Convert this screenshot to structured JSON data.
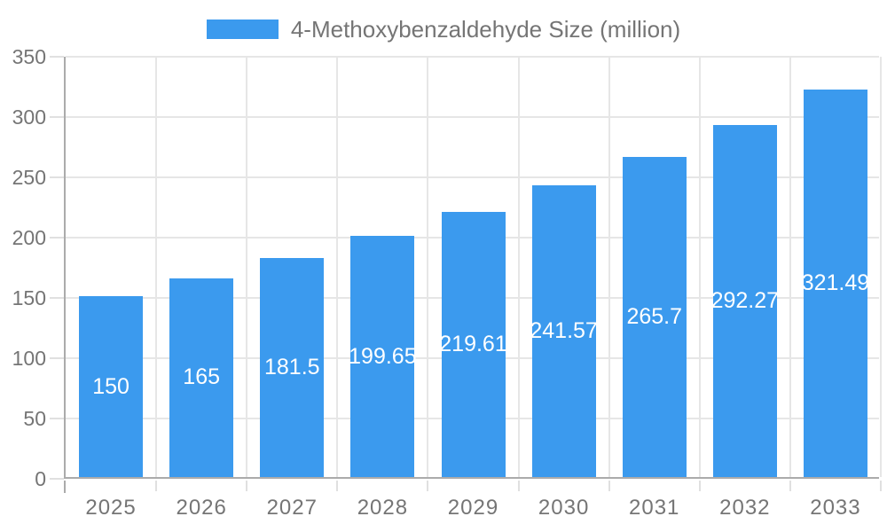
{
  "legend": {
    "position": "top",
    "entries": [
      {
        "label": "4-Methoxybenzaldehyde Size (million)",
        "swatch_color": "#3b9aee"
      }
    ]
  },
  "chart_data": {
    "type": "bar",
    "title": "",
    "xlabel": "",
    "ylabel": "",
    "categories": [
      "2025",
      "2026",
      "2027",
      "2028",
      "2029",
      "2030",
      "2031",
      "2032",
      "2033"
    ],
    "series": [
      {
        "name": "4-Methoxybenzaldehyde Size (million)",
        "values": [
          150,
          165,
          181.5,
          199.65,
          219.61,
          241.57,
          265.7,
          292.27,
          321.49
        ]
      }
    ],
    "bar_value_labels": [
      "150",
      "165",
      "181.5",
      "199.65",
      "219.61",
      "241.57",
      "265.7",
      "292.27",
      "321.49"
    ],
    "ylim": [
      0,
      350
    ],
    "yticks": [
      0,
      50,
      100,
      150,
      200,
      250,
      300,
      350
    ],
    "grid": true,
    "legend_position": "top",
    "colors": {
      "bar": "#3b9aee",
      "bar_label": "#ffffff",
      "axis_line": "#ababab",
      "gridline": "#e6e6e6",
      "tick_mark": "#e0e0e0",
      "tick_label": "#757575"
    }
  }
}
